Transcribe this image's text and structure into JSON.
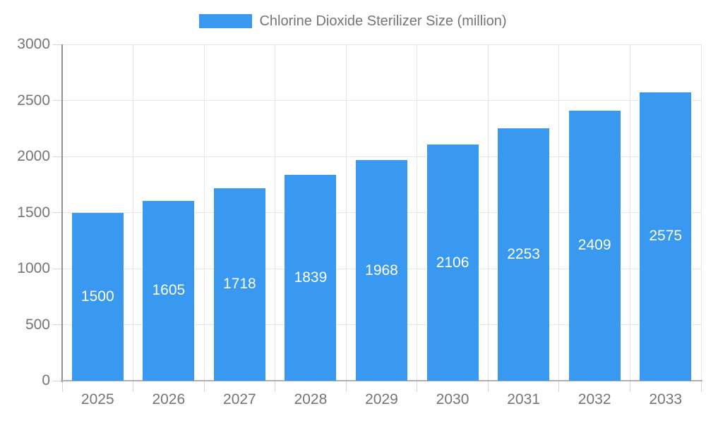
{
  "chart_data": {
    "type": "bar",
    "title": "Chlorine Dioxide Sterilizer Size (million)",
    "legend": [
      "Chlorine Dioxide Sterilizer Size (million)"
    ],
    "legend_position": "top-center",
    "categories": [
      "2025",
      "2026",
      "2027",
      "2028",
      "2029",
      "2030",
      "2031",
      "2032",
      "2033"
    ],
    "series": [
      {
        "name": "Chlorine Dioxide Sterilizer Size (million)",
        "values": [
          1500,
          1605,
          1718,
          1839,
          1968,
          2106,
          2253,
          2409,
          2575
        ]
      }
    ],
    "data_labels": [
      "1500",
      "1605",
      "1718",
      "1839",
      "1968",
      "2106",
      "2253",
      "2409",
      "2575"
    ],
    "data_label_position": "inside-center",
    "xlabel": "",
    "ylabel": "",
    "ylim": [
      0,
      3000
    ],
    "ytick_step": 500,
    "yticks": [
      "0",
      "500",
      "1000",
      "1500",
      "2000",
      "2500",
      "3000"
    ],
    "grid": true,
    "colors": {
      "bar": "#3999F0",
      "bar_label_text": "#FFFFFF",
      "axis_text": "#757575",
      "gridline": "#E6E6E6",
      "tick": "#D6D6D6",
      "y_axis_line": "#909090",
      "x_axis_line": "#B0B0B0",
      "background": "#FFFFFF"
    }
  }
}
